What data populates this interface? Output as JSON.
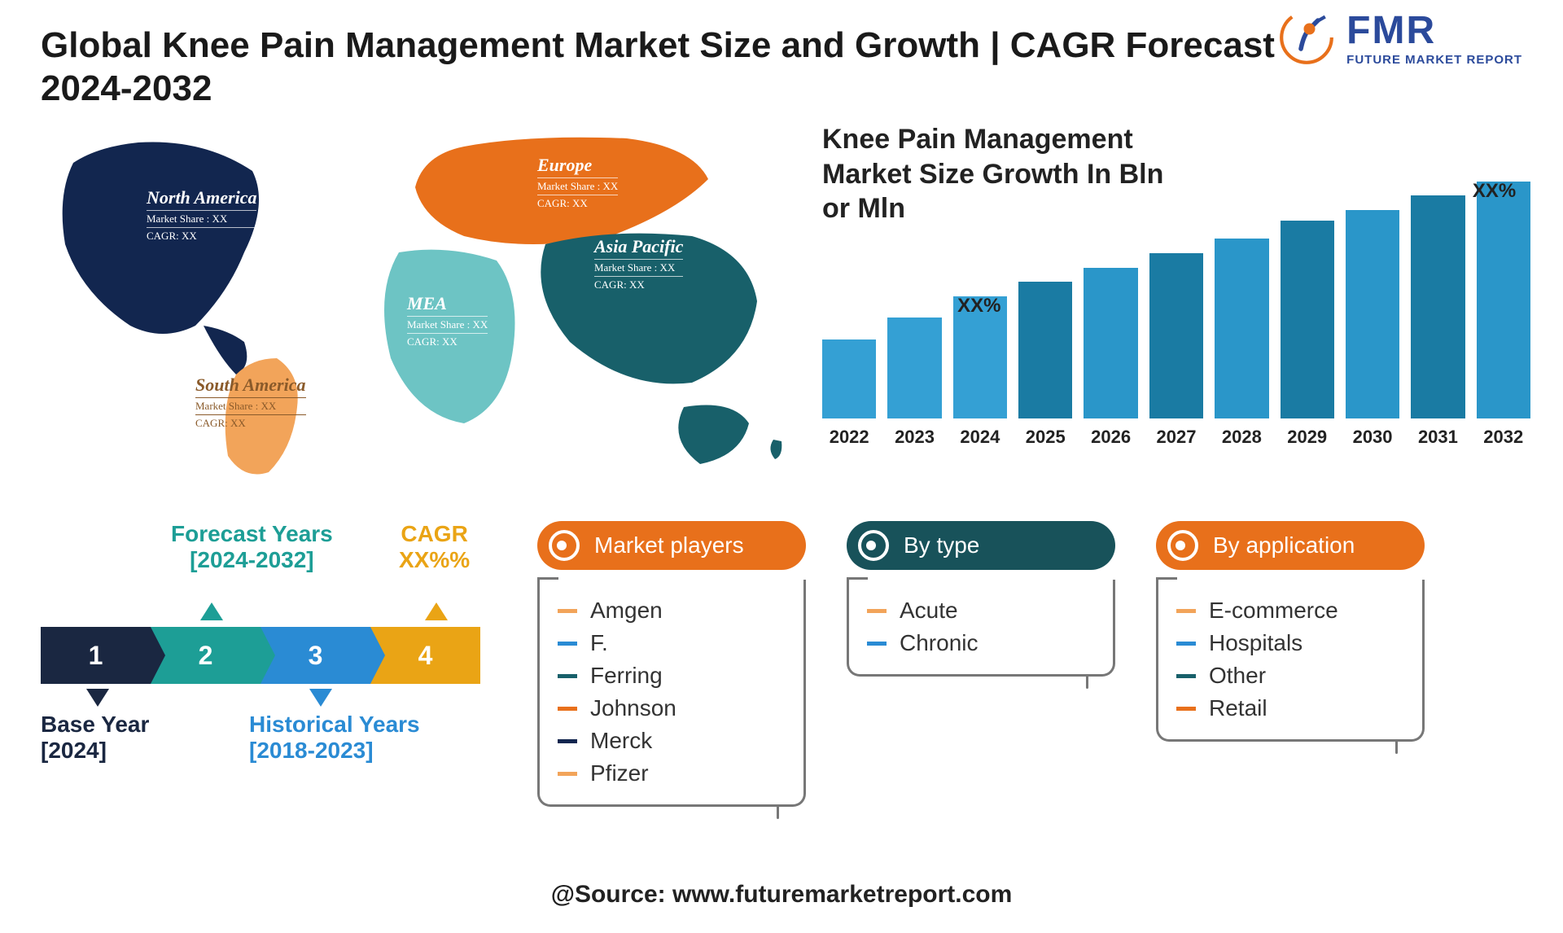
{
  "title": "Global Knee Pain Management Market Size and Growth | CAGR Forecast 2024-2032",
  "logo": {
    "text": "FMR",
    "tagline": "FUTURE MARKET REPORT",
    "main_color": "#2b4a9b",
    "accent_color": "#e8701b"
  },
  "map": {
    "regions": [
      {
        "name": "North America",
        "share": "Market Share : XX",
        "cagr": "CAGR: XX",
        "color": "#12264f"
      },
      {
        "name": "South America",
        "share": "Market Share : XX",
        "cagr": "CAGR: XX",
        "color": "#f2a45a"
      },
      {
        "name": "Europe",
        "share": "Market Share : XX",
        "cagr": "CAGR: XX",
        "color": "#e8701b"
      },
      {
        "name": "MEA",
        "share": "Market Share : XX",
        "cagr": "CAGR: XX",
        "color": "#6dc4c4"
      },
      {
        "name": "Asia Pacific",
        "share": "Market Share : XX",
        "cagr": "CAGR: XX",
        "color": "#18606a"
      }
    ]
  },
  "chart": {
    "type": "bar",
    "title": "Knee Pain Management Market Size Growth In Bln or Mln",
    "categories": [
      "2022",
      "2023",
      "2024",
      "2025",
      "2026",
      "2027",
      "2028",
      "2029",
      "2030",
      "2031",
      "2032"
    ],
    "values": [
      110,
      140,
      170,
      190,
      210,
      230,
      250,
      275,
      290,
      310,
      330
    ],
    "ylim": [
      0,
      340
    ],
    "colors": {
      "bar_light": "#34a0d4",
      "bar_dark": "#1a7ba3",
      "text": "#222222"
    },
    "annotations": [
      {
        "index": 2,
        "text": "XX%"
      },
      {
        "index": 10,
        "text": "XX%"
      }
    ]
  },
  "timeline": {
    "segments": [
      {
        "num": "1",
        "color": "#1a2741"
      },
      {
        "num": "2",
        "color": "#1d9e96"
      },
      {
        "num": "3",
        "color": "#2a8bd4"
      },
      {
        "num": "4",
        "color": "#eaa415"
      }
    ],
    "labels": {
      "base_title": "Base Year",
      "base_val": "[2024]",
      "base_color": "#1a2741",
      "forecast_title": "Forecast Years",
      "forecast_val": "[2024-2032]",
      "forecast_color": "#1d9e96",
      "hist_title": "Historical Years",
      "hist_val": "[2018-2023]",
      "hist_color": "#2a8bd4",
      "cagr_title": "CAGR",
      "cagr_val": "XX%%",
      "cagr_color": "#eaa415"
    }
  },
  "categories": [
    {
      "title": "Market players",
      "pill_color": "#e8701b",
      "items": [
        {
          "label": "Amgen",
          "color": "#f2a45a"
        },
        {
          "label": "F.",
          "color": "#2a8bd4"
        },
        {
          "label": "Ferring",
          "color": "#18606a"
        },
        {
          "label": "Johnson",
          "color": "#e8701b"
        },
        {
          "label": "Merck",
          "color": "#12264f"
        },
        {
          "label": "Pfizer",
          "color": "#f2a45a"
        }
      ]
    },
    {
      "title": "By type",
      "pill_color": "#18525a",
      "items": [
        {
          "label": "Acute",
          "color": "#f2a45a"
        },
        {
          "label": "Chronic",
          "color": "#2a8bd4"
        }
      ]
    },
    {
      "title": "By application",
      "pill_color": "#e8701b",
      "items": [
        {
          "label": "E-commerce",
          "color": "#f2a45a"
        },
        {
          "label": "Hospitals",
          "color": "#2a8bd4"
        },
        {
          "label": "Other",
          "color": "#18606a"
        },
        {
          "label": "Retail",
          "color": "#e8701b"
        }
      ]
    }
  ],
  "source": "@Source: www.futuremarketreport.com"
}
